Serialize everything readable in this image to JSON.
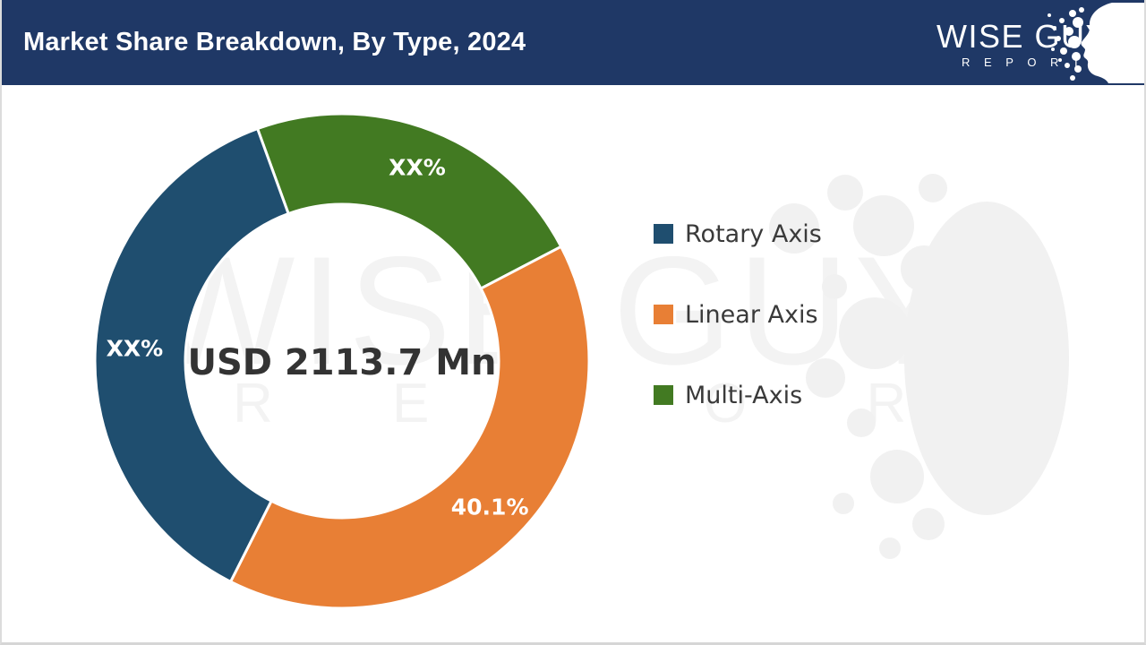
{
  "header": {
    "title": "Market Share Breakdown, By Type, 2024",
    "bg_color": "#1F3866",
    "logo_line1": "WISE GUY",
    "logo_line2": "R E P O R T S"
  },
  "watermark": {
    "line1": "WISE GUY",
    "line2": "R E P O R T S"
  },
  "chart_data": {
    "type": "pie",
    "subtype": "donut",
    "title": "Market Share Breakdown, By Type, 2024",
    "year": "2024",
    "center_label": "USD 2113.7 Mn",
    "start_angle_deg": 340,
    "legend_position": "right-middle",
    "gap_color": "#ffffff",
    "segments": [
      {
        "name": "Multi-Axis",
        "label": "XX%",
        "percent_drawn": 22.9,
        "value_shown": "XX%",
        "color": "#427A22"
      },
      {
        "name": "Linear Axis",
        "label": "40.1%",
        "percent_drawn": 40.1,
        "value_shown": "40.1%",
        "color": "#E87F35"
      },
      {
        "name": "Rotary Axis",
        "label": "XX%",
        "percent_drawn": 37.0,
        "value_shown": "XX%",
        "color": "#1F4E6F"
      }
    ],
    "legend": [
      {
        "label": "Rotary Axis",
        "color": "#1F4E6F"
      },
      {
        "label": "Linear Axis",
        "color": "#E87F35"
      },
      {
        "label": "Multi-Axis",
        "color": "#427A22"
      }
    ]
  }
}
